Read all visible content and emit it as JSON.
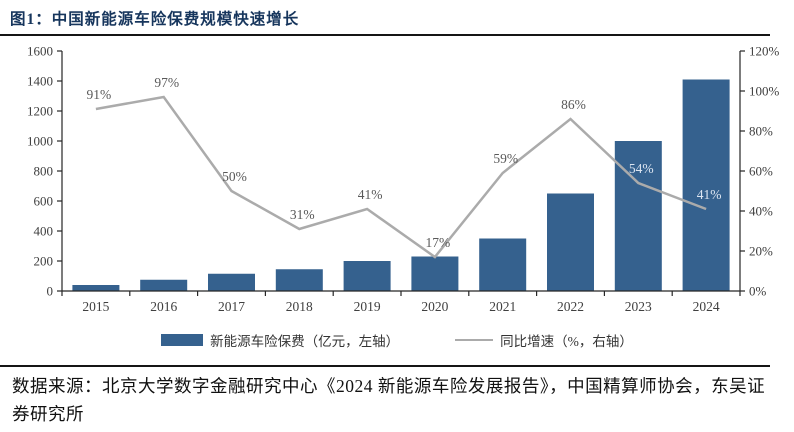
{
  "title": "图1：中国新能源车险保费规模快速增长",
  "legend": {
    "bars": "新能源车险保费（亿元，左轴）",
    "line": "同比增速（%，右轴）"
  },
  "source": "数据来源：北京大学数字金融研究中心《2024 新能源车险发展报告》，中国精算师协会，东吴证券研究所",
  "colors": {
    "bar": "#35618E",
    "line": "#ABABAB",
    "title": "#17365D",
    "axis": "#262626",
    "tick_label": "#404040",
    "data_label": "#595959",
    "data_label_on_bar": "#DCE5F1",
    "rule": "#151515"
  },
  "chart_data": {
    "type": "bar+line combo",
    "categories": [
      "2015",
      "2016",
      "2017",
      "2018",
      "2019",
      "2020",
      "2021",
      "2022",
      "2023",
      "2024"
    ],
    "series": [
      {
        "name": "新能源车险保费（亿元，左轴）",
        "type": "bar",
        "axis": "left",
        "values": [
          40,
          75,
          115,
          145,
          200,
          230,
          350,
          650,
          1000,
          1410
        ]
      },
      {
        "name": "同比增速（%，右轴）",
        "type": "line",
        "axis": "right",
        "values": [
          91,
          97,
          50,
          31,
          41,
          17,
          59,
          86,
          54,
          41
        ],
        "point_labels": [
          "91%",
          "97%",
          "50%",
          "31%",
          "41%",
          "17%",
          "59%",
          "86%",
          "54%",
          "41%"
        ]
      }
    ],
    "left_axis": {
      "min": 0,
      "max": 1600,
      "step": 200,
      "ticks": [
        "0",
        "200",
        "400",
        "600",
        "800",
        "1000",
        "1200",
        "1400",
        "1600"
      ]
    },
    "right_axis": {
      "min": 0,
      "max": 120,
      "step": 20,
      "ticks": [
        "0%",
        "20%",
        "40%",
        "60%",
        "80%",
        "100%",
        "120%"
      ]
    },
    "grid": false,
    "legend_position": "bottom"
  }
}
